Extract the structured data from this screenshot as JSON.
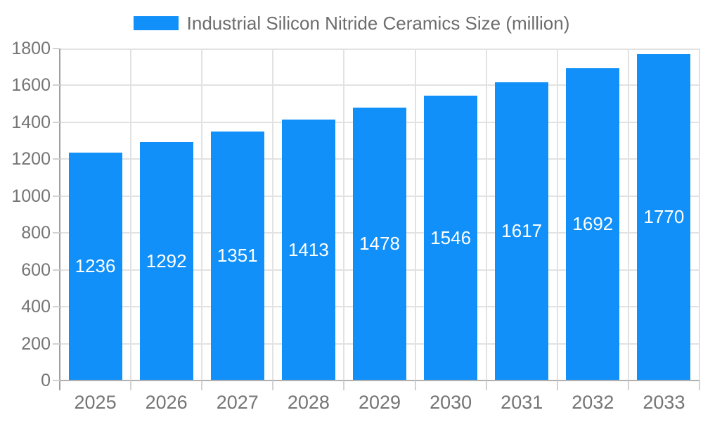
{
  "legend": {
    "label": "Industrial Silicon Nitride Ceramics Size (million)"
  },
  "chart_data": {
    "type": "bar",
    "title": "Industrial Silicon Nitride Ceramics Size (million)",
    "categories": [
      "2025",
      "2026",
      "2027",
      "2028",
      "2029",
      "2030",
      "2031",
      "2032",
      "2033"
    ],
    "values": [
      1236,
      1292,
      1351,
      1413,
      1478,
      1546,
      1617,
      1692,
      1770
    ],
    "xlabel": "",
    "ylabel": "",
    "ylim": [
      0,
      1800
    ],
    "ytick_step": 200,
    "yticks": [
      0,
      200,
      400,
      600,
      800,
      1000,
      1200,
      1400,
      1600,
      1800
    ],
    "grid": true,
    "legend_position": "top-center",
    "bar_color": "#1090f8",
    "value_label_color": "#ffffff",
    "axis_text_color": "#757575",
    "grid_color": "#e2e2e2"
  }
}
